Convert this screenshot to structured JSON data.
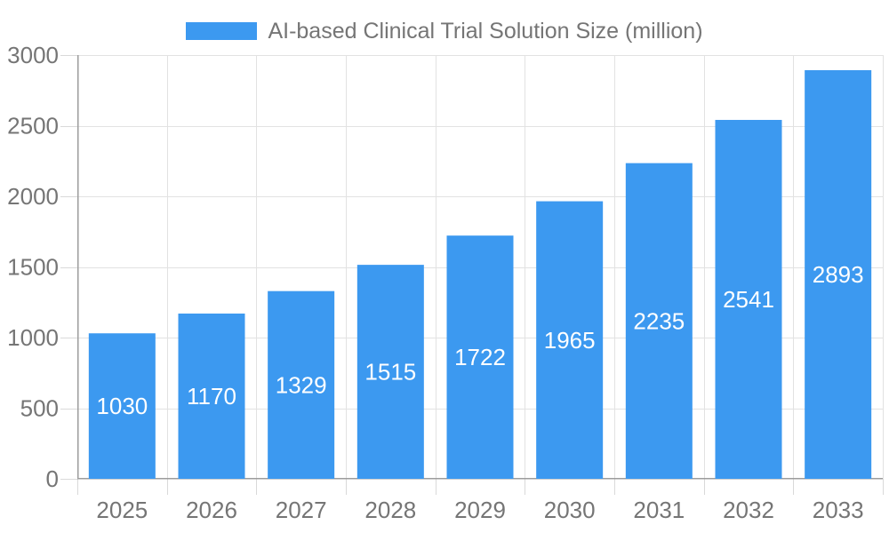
{
  "chart_data": {
    "type": "bar",
    "title": "AI-based Clinical Trial Solution Size (million)",
    "series_name": "AI-based Clinical Trial Solution Size (million)",
    "categories": [
      "2025",
      "2026",
      "2027",
      "2028",
      "2029",
      "2030",
      "2031",
      "2032",
      "2033"
    ],
    "values": [
      1030,
      1170,
      1329,
      1515,
      1722,
      1965,
      2235,
      2541,
      2893
    ],
    "xlabel": "",
    "ylabel": "",
    "ylim": [
      0,
      3000
    ],
    "y_ticks": [
      0,
      500,
      1000,
      1500,
      2000,
      2500,
      3000
    ],
    "grid": true,
    "legend_position": "top-center",
    "value_labels": "inside-center",
    "colors": {
      "bar": "#3C99F0",
      "value_label": "#FFFFFF",
      "axis_text": "#757575",
      "axis_line": "#9C9C9C",
      "gridline": "#E2E2E2",
      "tick": "#D9D9D9",
      "background": "#FFFFFF"
    }
  }
}
